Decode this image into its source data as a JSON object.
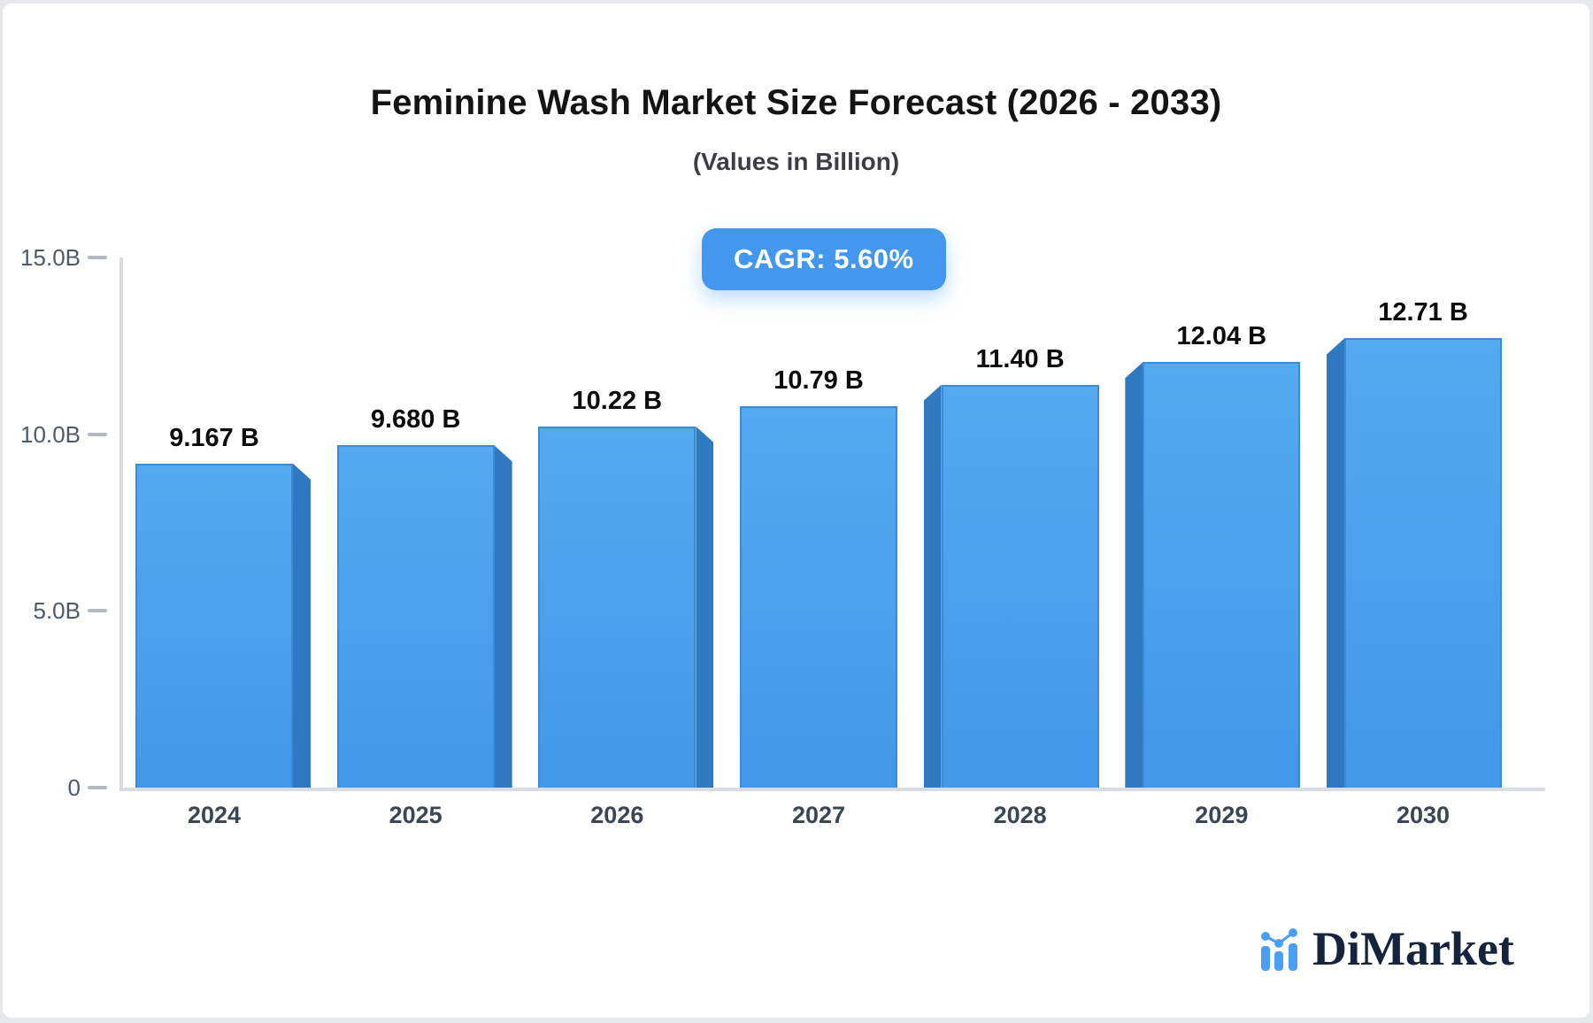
{
  "page": {
    "background_color": "#e6e8ec",
    "card_background_color": "#ffffff"
  },
  "header": {
    "title": "Feminine Wash Market Size Forecast (2026 - 2033)",
    "subtitle": "(Values in Billion)",
    "cagr_badge": "CAGR: 5.60%"
  },
  "chart_data": {
    "type": "bar",
    "title": "Feminine Wash Market Size Forecast (2026 - 2033)",
    "subtitle": "(Values in Billion)",
    "annotation": "CAGR: 5.60%",
    "unit": "Billion",
    "categories": [
      "2024",
      "2025",
      "2026",
      "2027",
      "2028",
      "2029",
      "2030"
    ],
    "values": [
      9.167,
      9.68,
      10.22,
      10.79,
      11.4,
      12.04,
      12.71
    ],
    "value_labels": [
      "9.167 B",
      "9.680 B",
      "10.22 B",
      "10.79 B",
      "11.40 B",
      "12.04 B",
      "12.71 B"
    ],
    "ylim": [
      0,
      15
    ],
    "yticks": [
      {
        "label": "15.0B",
        "value": 15
      },
      {
        "label": "10.0B",
        "value": 10
      },
      {
        "label": "5.0B",
        "value": 5
      },
      {
        "label": "0",
        "value": 0
      }
    ],
    "grid": false,
    "legend": false,
    "bar_color_top": "#55a9ef",
    "bar_color_bottom": "#4397e9",
    "bar_side_color": "#2e79c0",
    "bar_border_color": "#3b8cd8",
    "axis_line_color": "#d8dce2"
  },
  "branding": {
    "logo_text": "DiMarket",
    "logo_icon": "bar-chart-logo-icon",
    "logo_icon_color": "#4a9ef3",
    "logo_text_color": "#16233c"
  },
  "colors": {
    "badge_background": "#4497ee",
    "tick_label": "#4e5a68",
    "year_label": "#3a4555",
    "value_label": "#0c0c0c"
  }
}
